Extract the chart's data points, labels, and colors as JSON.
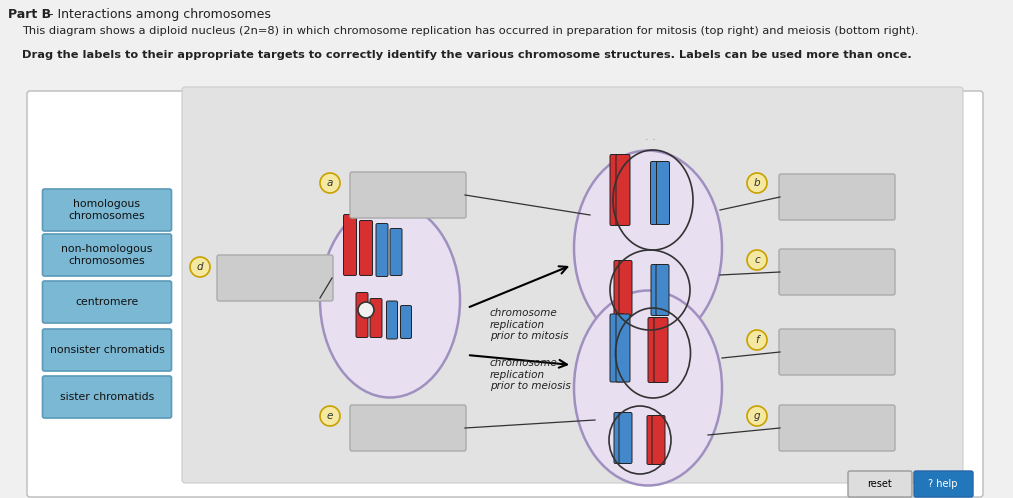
{
  "title_bold": "Part B",
  "title_dash": " - ",
  "title_rest": "Interactions among chromosomes",
  "subtitle": "This diagram shows a diploid nucleus (2n=8) in which chromosome replication has occurred in preparation for mitosis (top right) and meiosis (bottom right).",
  "bold_text": "Drag the labels to their appropriate targets to correctly identify the various chromosome structures. Labels can be used more than once.",
  "label_buttons": [
    "homologous\nchromosomes",
    "non-homologous\nchromosomes",
    "centromere",
    "nonsister chromatids",
    "sister chromatids"
  ],
  "btn_color": "#7bb8d4",
  "btn_edge": "#5a9ab8",
  "bg_color": "#f0f0f0",
  "white_panel": "#ffffff",
  "gray_panel": "#e2e2e2",
  "answer_box_color": "#cccccc",
  "answer_box_edge": "#aaaaaa",
  "nucleus_fill": "#e8dff0",
  "nucleus_edge": "#a090c0",
  "circle_fill": "#f5e8a0",
  "circle_edge": "#c8a000",
  "red_chrom": "#d63030",
  "blue_chrom": "#4488cc",
  "inner_circle_edge": "#333333"
}
